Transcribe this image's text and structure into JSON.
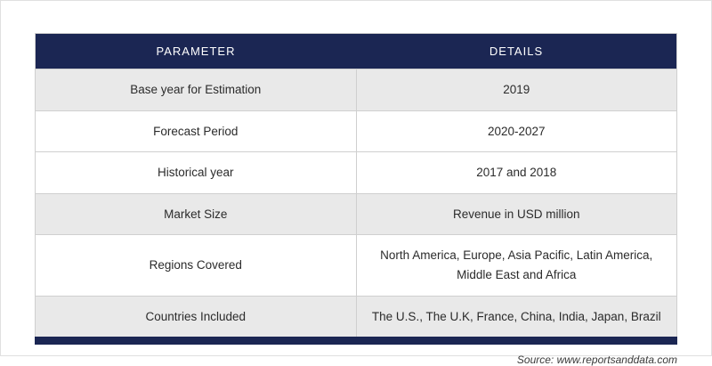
{
  "colors": {
    "header_bg": "#1b2653",
    "shaded_row_bg": "#e9e9e9",
    "border": "#cfcfcf"
  },
  "table": {
    "headers": [
      "PARAMETER",
      "DETAILS"
    ],
    "rows": [
      {
        "parameter": "Base year for Estimation",
        "details": "2019",
        "shaded": true
      },
      {
        "parameter": "Forecast Period",
        "details": "2020-2027",
        "shaded": false
      },
      {
        "parameter": "Historical year",
        "details": "2017 and 2018",
        "shaded": false
      },
      {
        "parameter": "Market Size",
        "details": "Revenue in USD million",
        "shaded": true
      },
      {
        "parameter": "Regions Covered",
        "details": "North America, Europe, Asia Pacific, Latin America, Middle East and Africa",
        "shaded": false
      },
      {
        "parameter": "Countries Included",
        "details": "The U.S., The  U.K, France, China, India, Japan, Brazil",
        "shaded": true
      }
    ]
  },
  "source": "Source: www.reportsanddata.com"
}
